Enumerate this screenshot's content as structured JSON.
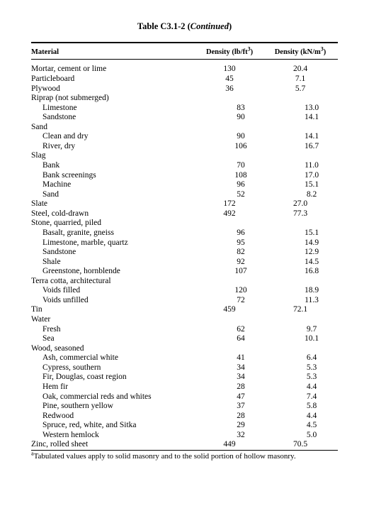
{
  "title_prefix": "Table C3.1-2 (",
  "title_ital": "Continued",
  "title_suffix": ")",
  "headers": {
    "material": "Material",
    "d1_pre": "Density (lb/ft",
    "d1_sup": "3",
    "d1_post": ")",
    "d2_pre": "Density (kN/m",
    "d2_sup": "3",
    "d2_post": ")"
  },
  "rows": [
    {
      "m": "Mortar, cement or lime",
      "d1": "130",
      "d2": "20.4",
      "i": 0
    },
    {
      "m": "Particleboard",
      "d1": "45",
      "d2": "7.1",
      "i": 0
    },
    {
      "m": "Plywood",
      "d1": "36",
      "d2": "5.7",
      "i": 0
    },
    {
      "m": "Riprap (not submerged)",
      "d1": "",
      "d2": "",
      "i": 0
    },
    {
      "m": "Limestone",
      "d1": "83",
      "d2": "13.0",
      "i": 1
    },
    {
      "m": "Sandstone",
      "d1": "90",
      "d2": "14.1",
      "i": 1
    },
    {
      "m": "Sand",
      "d1": "",
      "d2": "",
      "i": 0
    },
    {
      "m": "Clean and dry",
      "d1": "90",
      "d2": "14.1",
      "i": 1
    },
    {
      "m": "River, dry",
      "d1": "106",
      "d2": "16.7",
      "i": 1
    },
    {
      "m": "Slag",
      "d1": "",
      "d2": "",
      "i": 0
    },
    {
      "m": "Bank",
      "d1": "70",
      "d2": "11.0",
      "i": 1
    },
    {
      "m": "Bank screenings",
      "d1": "108",
      "d2": "17.0",
      "i": 1
    },
    {
      "m": "Machine",
      "d1": "96",
      "d2": "15.1",
      "i": 1
    },
    {
      "m": "Sand",
      "d1": "52",
      "d2": "8.2",
      "i": 1
    },
    {
      "m": "Slate",
      "d1": "172",
      "d2": "27.0",
      "i": 0
    },
    {
      "m": "Steel, cold-drawn",
      "d1": "492",
      "d2": "77.3",
      "i": 0
    },
    {
      "m": "Stone, quarried, piled",
      "d1": "",
      "d2": "",
      "i": 0
    },
    {
      "m": "Basalt, granite, gneiss",
      "d1": "96",
      "d2": "15.1",
      "i": 1
    },
    {
      "m": "Limestone, marble, quartz",
      "d1": "95",
      "d2": "14.9",
      "i": 1
    },
    {
      "m": "Sandstone",
      "d1": "82",
      "d2": "12.9",
      "i": 1
    },
    {
      "m": "Shale",
      "d1": "92",
      "d2": "14.5",
      "i": 1
    },
    {
      "m": "Greenstone, hornblende",
      "d1": "107",
      "d2": "16.8",
      "i": 1
    },
    {
      "m": "Terra cotta, architectural",
      "d1": "",
      "d2": "",
      "i": 0
    },
    {
      "m": "Voids filled",
      "d1": "120",
      "d2": "18.9",
      "i": 1
    },
    {
      "m": "Voids unfilled",
      "d1": "72",
      "d2": "11.3",
      "i": 1
    },
    {
      "m": "Tin",
      "d1": "459",
      "d2": "72.1",
      "i": 0
    },
    {
      "m": "Water",
      "d1": "",
      "d2": "",
      "i": 0
    },
    {
      "m": "Fresh",
      "d1": "62",
      "d2": "9.7",
      "i": 1
    },
    {
      "m": "Sea",
      "d1": "64",
      "d2": "10.1",
      "i": 1
    },
    {
      "m": "Wood, seasoned",
      "d1": "",
      "d2": "",
      "i": 0
    },
    {
      "m": "Ash, commercial white",
      "d1": "41",
      "d2": "6.4",
      "i": 1
    },
    {
      "m": "Cypress, southern",
      "d1": "34",
      "d2": "5.3",
      "i": 1
    },
    {
      "m": "Fir, Douglas, coast region",
      "d1": "34",
      "d2": "5.3",
      "i": 1
    },
    {
      "m": "Hem fir",
      "d1": "28",
      "d2": "4.4",
      "i": 1
    },
    {
      "m": "Oak, commercial reds and whites",
      "d1": "47",
      "d2": "7.4",
      "i": 1
    },
    {
      "m": "Pine, southern yellow",
      "d1": "37",
      "d2": "5.8",
      "i": 1
    },
    {
      "m": "Redwood",
      "d1": "28",
      "d2": "4.4",
      "i": 1
    },
    {
      "m": "Spruce, red, white, and Sitka",
      "d1": "29",
      "d2": "4.5",
      "i": 1
    },
    {
      "m": "Western hemlock",
      "d1": "32",
      "d2": "5.0",
      "i": 1
    },
    {
      "m": "Zinc, rolled sheet",
      "d1": "449",
      "d2": "70.5",
      "i": 0
    }
  ],
  "footnote_sup": "a",
  "footnote_text": "Tabulated values apply to solid masonry and to the solid portion of hollow masonry."
}
